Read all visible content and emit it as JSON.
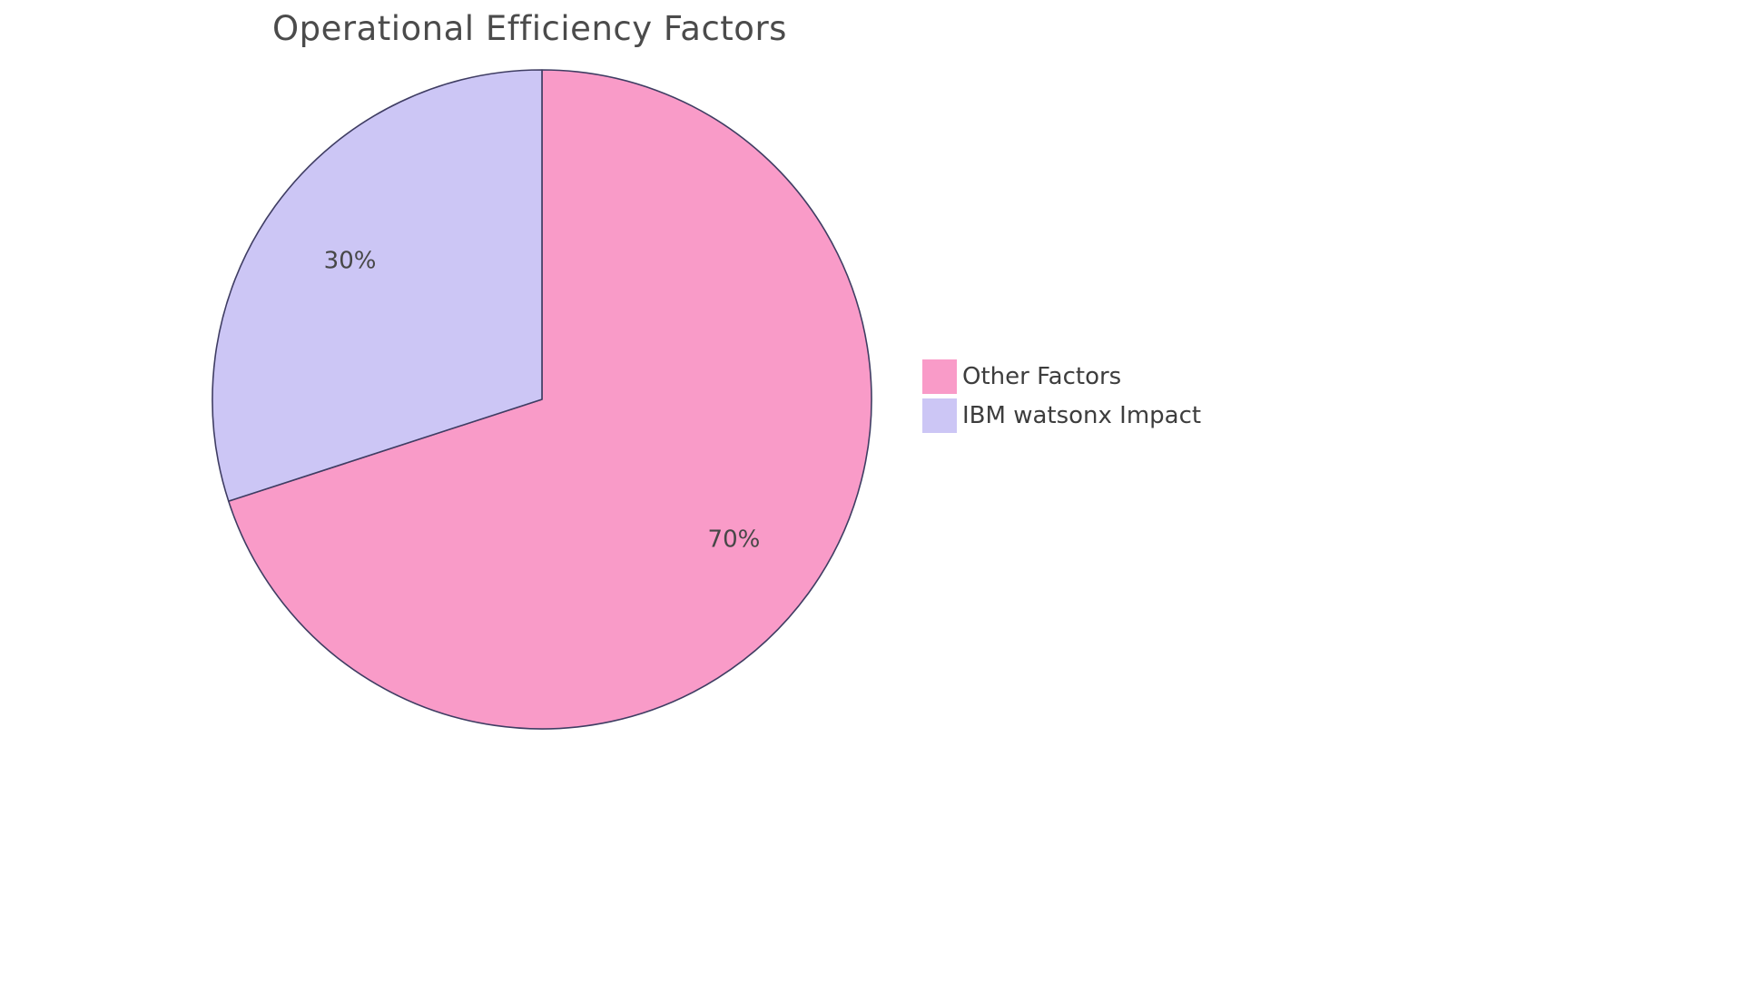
{
  "chart_data": {
    "type": "pie",
    "title": "Operational Efficiency Factors",
    "legend_position": "right",
    "direction": "clockwise",
    "start_angle_deg": 0,
    "stroke_color": "#3f3d63",
    "background_color": "#ffffff",
    "slices": [
      {
        "label": "Other Factors",
        "value": 70,
        "pct_label": "70%",
        "color": "#f99bc8"
      },
      {
        "label": "IBM watsonx Impact",
        "value": 30,
        "pct_label": "30%",
        "color": "#ccc6f5"
      }
    ]
  }
}
